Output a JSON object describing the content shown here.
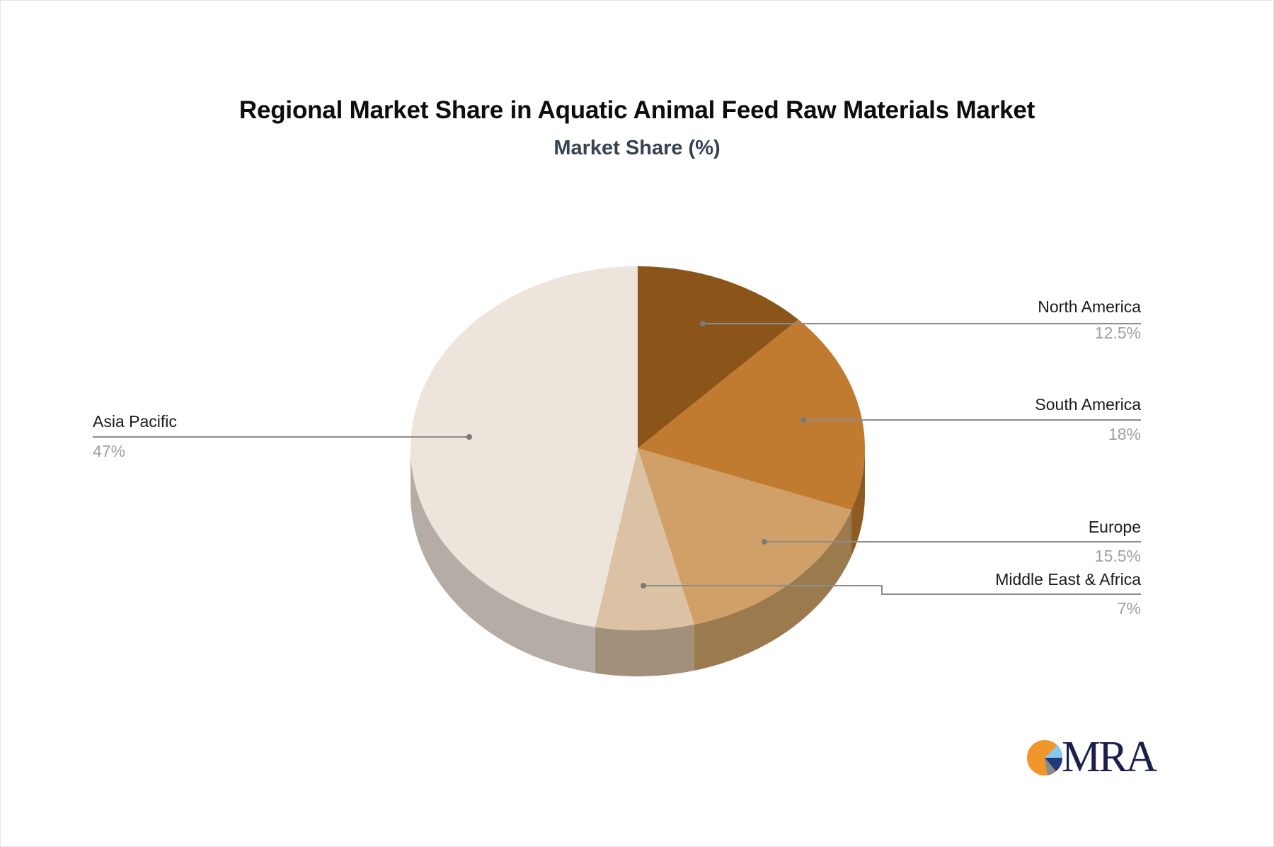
{
  "chart_data": {
    "type": "pie",
    "style": "3d",
    "title": "Regional Market Share in Aquatic Animal Feed Raw Materials Market",
    "subtitle": "Market Share (%)",
    "categories": [
      "North America",
      "South America",
      "Europe",
      "Middle East & Africa",
      "Asia Pacific"
    ],
    "values": [
      12.5,
      18,
      15.5,
      7,
      47
    ],
    "value_labels": [
      "12.5%",
      "18%",
      "15.5%",
      "7%",
      "47%"
    ],
    "colors": [
      "#8B5519",
      "#C07B30",
      "#D1A068",
      "#DBC2A4",
      "#EDE4DB"
    ],
    "side_colors": [
      "#6E4314",
      "#8E5C23",
      "#9B7A4E",
      "#A3907A",
      "#B4ACA5"
    ],
    "start_angle_deg": -90,
    "direction": "clockwise",
    "legend": "callout-labels"
  },
  "branding": {
    "logo_text": "MRA",
    "logo_colors": [
      "#F0962A",
      "#87C8EE",
      "#1F3A7A",
      "#8A8A8A"
    ]
  }
}
